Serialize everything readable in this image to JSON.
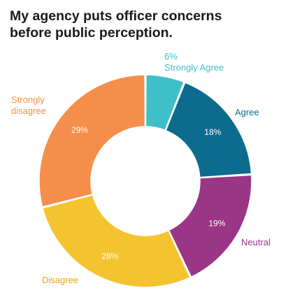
{
  "chart_data": {
    "type": "pie",
    "title_lines": [
      "My agency puts officer concerns",
      "before public perception."
    ],
    "slices": [
      {
        "name": "Strongly Agree",
        "value": 6,
        "label": "6%",
        "color": "#3fbfc8"
      },
      {
        "name": "Agree",
        "value": 18,
        "label": "18%",
        "color": "#0d6b8e"
      },
      {
        "name": "Neutral",
        "value": 19,
        "label": "19%",
        "color": "#9b3586"
      },
      {
        "name": "Disagree",
        "value": 28,
        "label": "28%",
        "color": "#f4c430"
      },
      {
        "name": "Strongly disagree",
        "value": 29,
        "label": "29%",
        "color": "#f58e4a"
      }
    ],
    "legend": "none"
  }
}
